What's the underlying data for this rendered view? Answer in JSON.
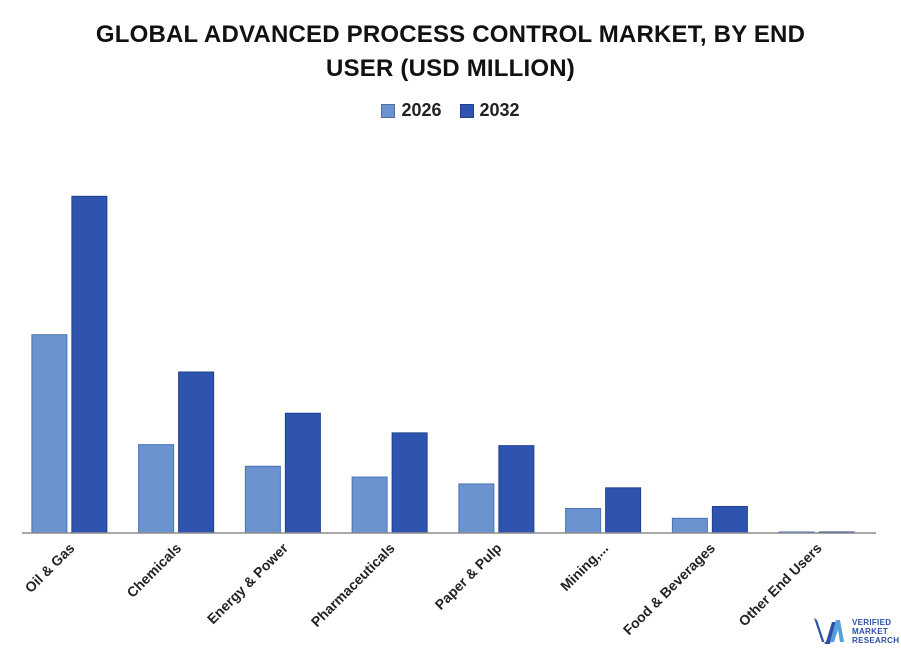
{
  "chart_data": {
    "type": "bar",
    "title": "GLOBAL ADVANCED PROCESS CONTROL MARKET, BY END USER (USD MILLION)",
    "xlabel": "",
    "ylabel": "",
    "categories": [
      "Oil & Gas",
      "Chemicals",
      "Energy & Power",
      "Pharmaceuticals",
      "Paper & Pulp",
      "Mining,...",
      "Food & Beverages",
      "Other End Users"
    ],
    "series": [
      {
        "name": "2026",
        "color": "#6b93cf",
        "values": [
          202,
          90,
          68,
          57,
          50,
          25,
          15,
          0.5
        ]
      },
      {
        "name": "2032",
        "color": "#2f54b0",
        "values": [
          343,
          164,
          122,
          102,
          89,
          46,
          27,
          0.8
        ]
      }
    ],
    "ylim": [
      0,
      380
    ],
    "grid": false,
    "legend_position": "top-center"
  },
  "title_lines": [
    "GLOBAL ADVANCED PROCESS CONTROL MARKET, BY END",
    "USER (USD MILLION)"
  ],
  "legend": [
    {
      "label": "2026",
      "color": "#6b93cf"
    },
    {
      "label": "2032",
      "color": "#2f54b0"
    }
  ],
  "brand": {
    "logo_line1": "VERIFIED",
    "logo_line2": "MARKET",
    "logo_line3": "RESEARCH",
    "logo_color": "#2d4fa8"
  }
}
